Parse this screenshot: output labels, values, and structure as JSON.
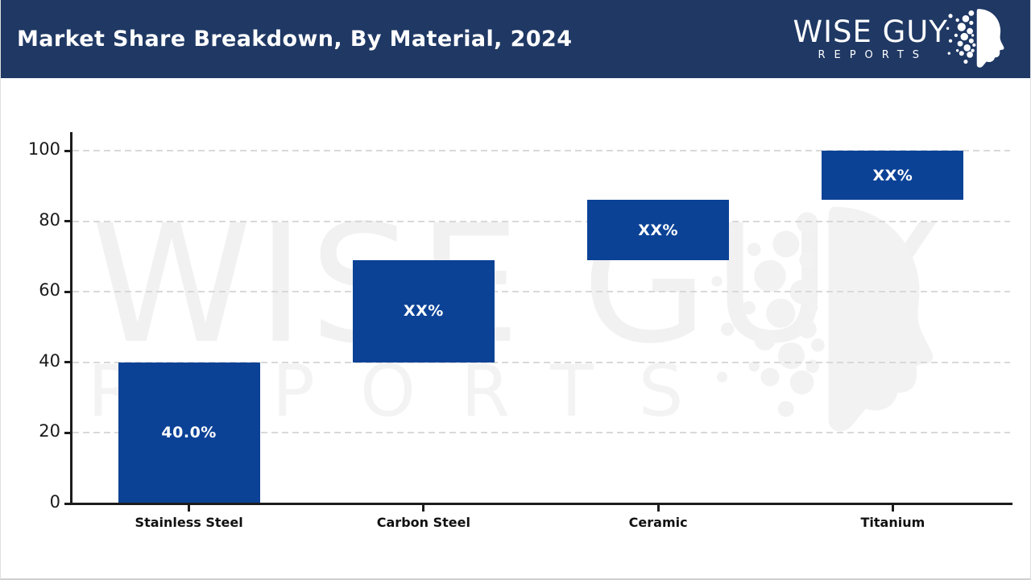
{
  "header": {
    "title": "Market Share Breakdown, By Material, 2024",
    "logo_line1": "WISE GUY",
    "logo_line2": "REPORTS"
  },
  "watermark": {
    "line1": "WISE GUY",
    "line2": "REPORTS"
  },
  "colors": {
    "header_bg": "#1f3864",
    "bar_blue": "#0b4296",
    "bar_label": "#ffffff",
    "gridline": "#d9d9d9",
    "axis": "#1c1c1c",
    "watermark": "#f1f1f2"
  },
  "chart_data": {
    "type": "bar",
    "variant": "waterfall",
    "title": "Market Share Breakdown, By Material, 2024",
    "categories": [
      "Stainless Steel",
      "Carbon Steel",
      "Ceramic",
      "Titanium"
    ],
    "segments": [
      {
        "category": "Stainless Steel",
        "start": 0,
        "end": 40,
        "value": 40,
        "label": "40.0%"
      },
      {
        "category": "Carbon Steel",
        "start": 40,
        "end": 69,
        "value": 29,
        "label": "XX%"
      },
      {
        "category": "Ceramic",
        "start": 69,
        "end": 86,
        "value": 17,
        "label": "XX%"
      },
      {
        "category": "Titanium",
        "start": 86,
        "end": 100,
        "value": 14,
        "label": "XX%"
      }
    ],
    "xlabel": "",
    "ylabel": "",
    "ylim": [
      0,
      100
    ],
    "yticks": [
      0,
      20,
      40,
      60,
      80,
      100
    ],
    "grid": "horizontal dashed",
    "legend": "none",
    "bar_color": "#0b4296",
    "label_color": "#ffffff"
  }
}
